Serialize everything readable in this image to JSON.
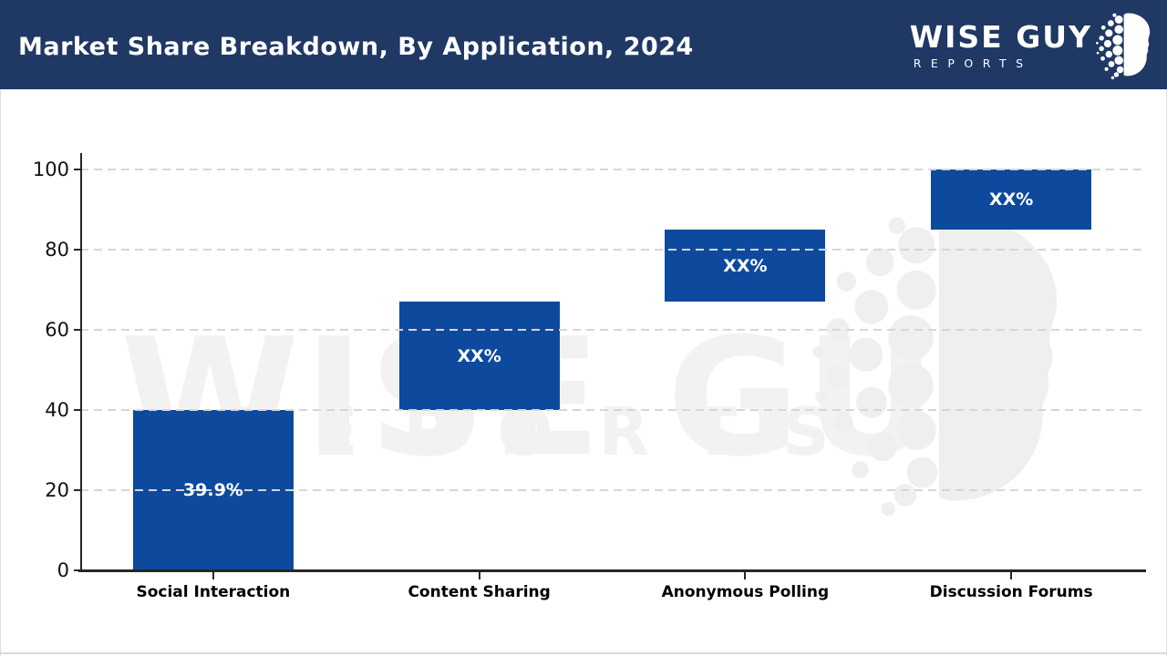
{
  "header": {
    "title": "Market Share Breakdown, By Application, 2024",
    "logo": {
      "line1": "WISE GUY",
      "line2": "REPORTS",
      "head_icon": "dotted-head-profile-icon"
    }
  },
  "watermark": {
    "line1": "WISE GU",
    "line2": "REPORTS",
    "head_icon": "dotted-head-profile-icon"
  },
  "chart_data": {
    "type": "bar",
    "subtype": "waterfall",
    "title": "Market Share Breakdown, By Application, 2024",
    "categories": [
      "Social Interaction",
      "Content Sharing",
      "Anonymous Polling",
      "Discussion Forums"
    ],
    "segments": [
      {
        "category": "Social Interaction",
        "start": 0,
        "end": 39.9,
        "value": 39.9,
        "label": "39.9%"
      },
      {
        "category": "Content Sharing",
        "start": 40,
        "end": 67,
        "value": 27,
        "label": "XX%"
      },
      {
        "category": "Anonymous Polling",
        "start": 67,
        "end": 85,
        "value": 18,
        "label": "XX%"
      },
      {
        "category": "Discussion Forums",
        "start": 85,
        "end": 100,
        "value": 15,
        "label": "XX%"
      }
    ],
    "yticks": [
      0,
      20,
      40,
      60,
      80,
      100
    ],
    "ylim": [
      0,
      104
    ],
    "xlabel": "",
    "ylabel": "",
    "grid": "horizontal-dashed-over-bars",
    "legend": "none",
    "colors": {
      "bar": "#0d4a9e",
      "bar_label": "#ffffff",
      "axis": "#262626",
      "grid": "#d6d6d6",
      "tick_label": "#111111",
      "header_bg": "#1f3864",
      "watermark": "#f2f2f2"
    }
  }
}
